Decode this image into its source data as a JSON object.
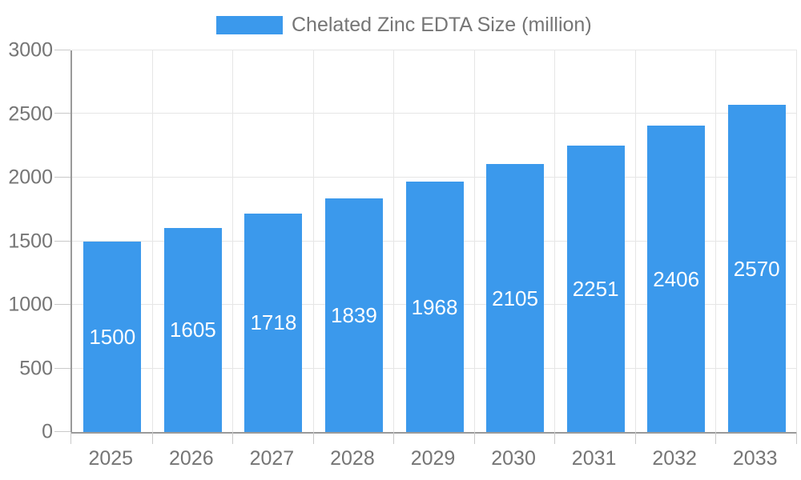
{
  "legend": {
    "label": "Chelated Zinc EDTA Size (million)"
  },
  "chart_data": {
    "type": "bar",
    "title": "Chelated Zinc EDTA Size (million)",
    "categories": [
      "2025",
      "2026",
      "2027",
      "2028",
      "2029",
      "2030",
      "2031",
      "2032",
      "2033"
    ],
    "values": [
      1500,
      1605,
      1718,
      1839,
      1968,
      2105,
      2251,
      2406,
      2570
    ],
    "xlabel": "",
    "ylabel": "",
    "ylim": [
      0,
      3000
    ],
    "yticks": [
      0,
      500,
      1000,
      1500,
      2000,
      2500,
      3000
    ],
    "grid": true,
    "legend_position": "top-center",
    "value_labels_inside_bars": true
  },
  "colors": {
    "bar": "#3b99ec",
    "bar_value_text": "#ffffff",
    "axis_line": "#9a9a9a",
    "grid_line": "#e6e6e6",
    "tick_line": "#c9c9c9",
    "axis_text": "#757575",
    "background": "#ffffff"
  }
}
